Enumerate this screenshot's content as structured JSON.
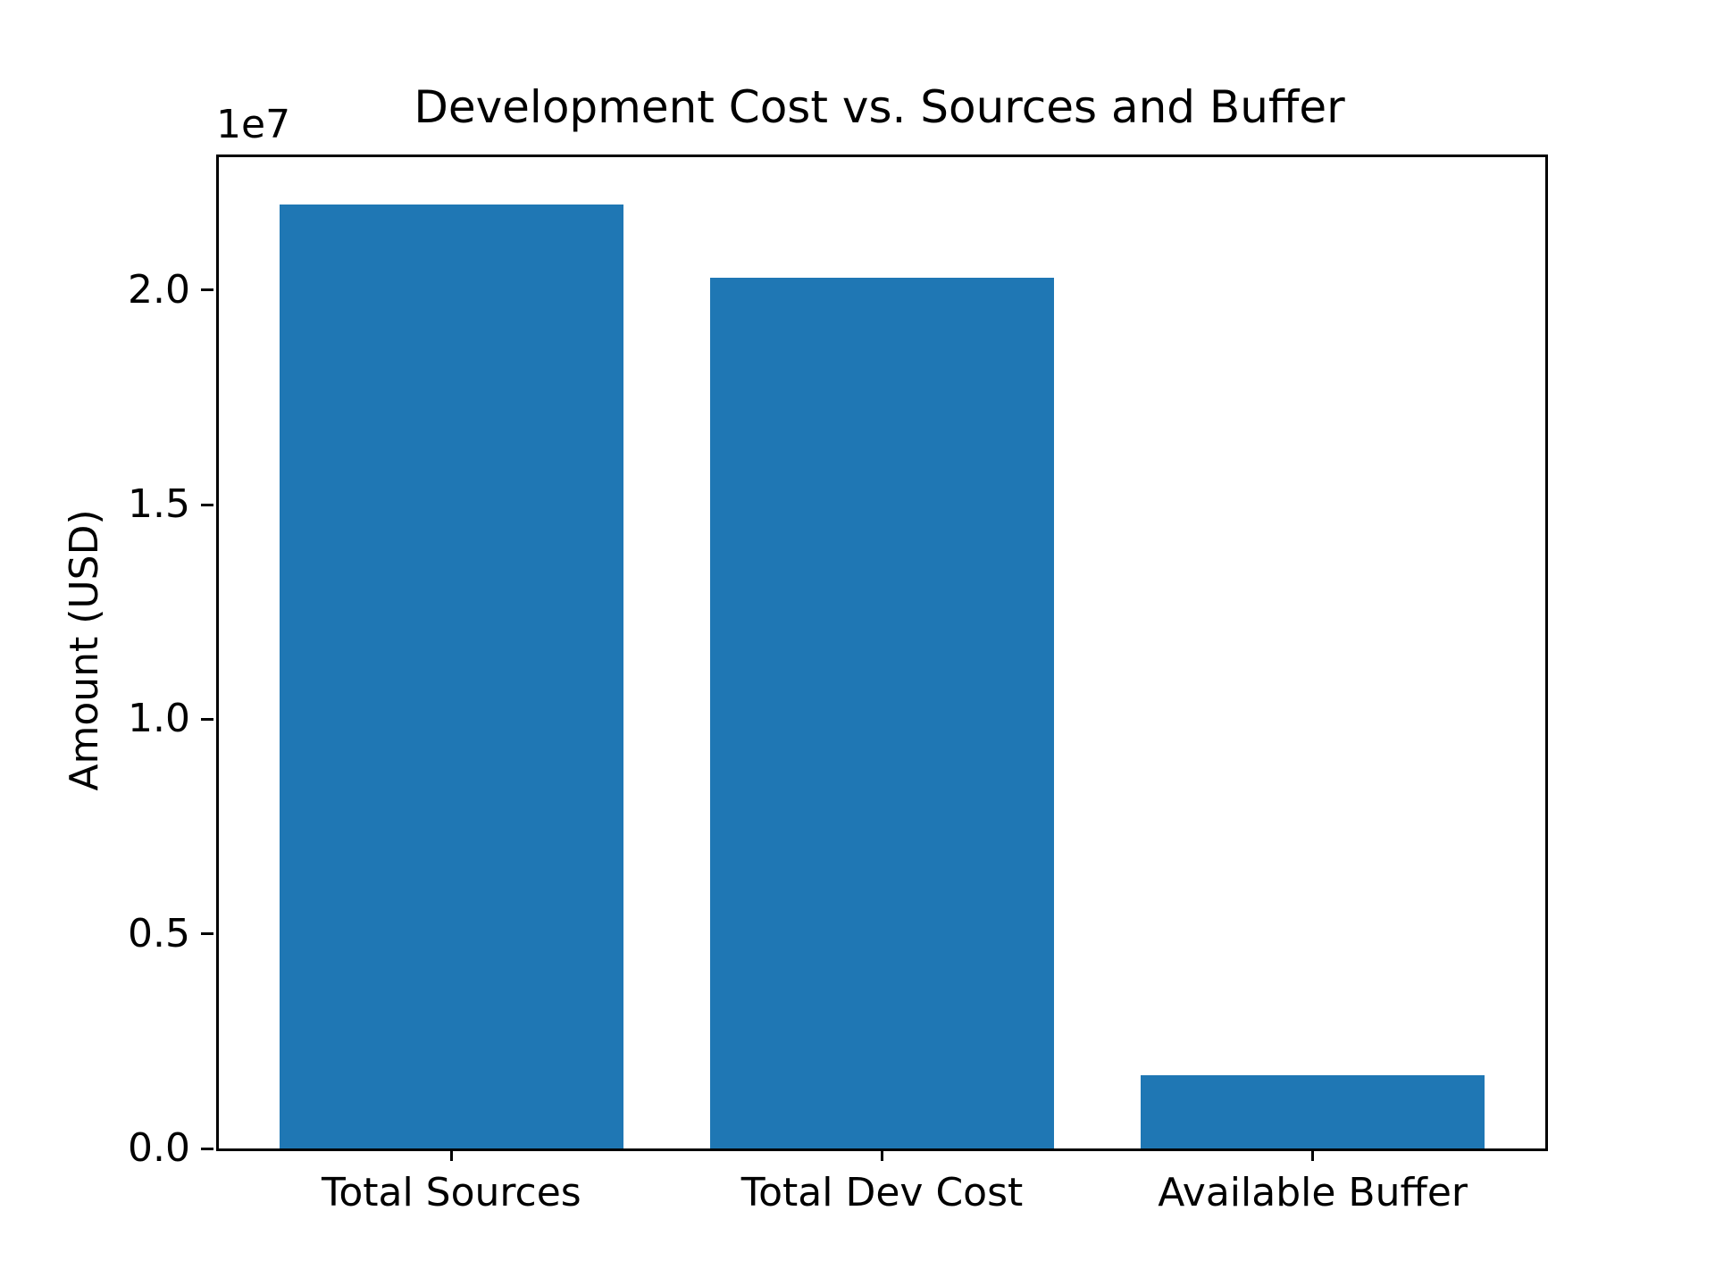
{
  "figure": {
    "background": "#ffffff",
    "text_color": "#000000"
  },
  "chart_data": {
    "type": "bar",
    "title": "Development Cost vs. Sources and Buffer",
    "xlabel": "",
    "ylabel": "Amount (USD)",
    "offset_label": "1e7",
    "categories": [
      "Total Sources",
      "Total Dev Cost",
      "Available Buffer"
    ],
    "values": [
      22000000,
      20300000,
      1700000
    ],
    "ylim": [
      0,
      23100000
    ],
    "yticks": [
      0,
      5000000,
      10000000,
      15000000,
      20000000
    ],
    "ytick_labels": [
      "0.0",
      "0.5",
      "1.0",
      "1.5",
      "2.0"
    ],
    "xlim": [
      -0.54,
      2.54
    ],
    "bar_width_fraction": 0.8,
    "bar_color": "#1f77b4",
    "grid": false,
    "legend_position": "none"
  }
}
